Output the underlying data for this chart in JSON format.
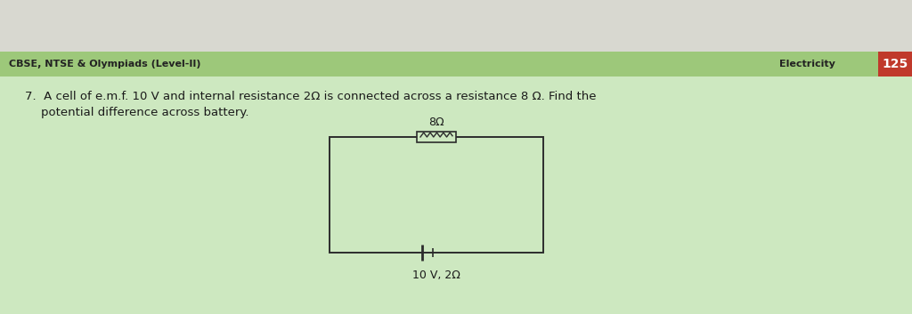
{
  "bg_top_color": "#e8e8e0",
  "header_bg_color": "#9dc87a",
  "header_text_left": "CBSE, NTSE & Olympiads (Level-II)",
  "header_text_right": "Electricity",
  "header_number": "125",
  "header_number_bg": "#c0392b",
  "question_number": "7.",
  "question_text": "A cell of e.m.f. 10 V and internal resistance 2Ω is connected across a resistance 8 Ω. Find the potential difference across battery.",
  "bg_card_color": "#cde8c0",
  "resistor_label": "8Ω",
  "battery_label": "10 V, 2Ω",
  "text_color": "#1a1a1a",
  "line_color": "#2c2c2c",
  "font_size_header": 8,
  "font_size_question": 9.5,
  "font_size_circuit": 9
}
